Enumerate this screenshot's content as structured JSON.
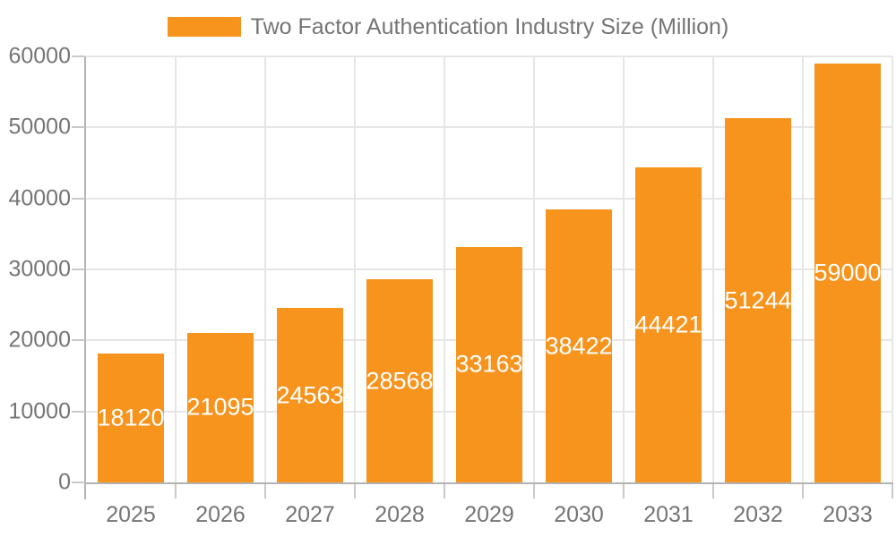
{
  "colors": {
    "bar": "#F7941E",
    "bar_label": "#FFFFFF",
    "axis_line": "#B3B3B3",
    "tick": "#C9C9C9",
    "gridline": "#E6E6E6",
    "axis_text": "#757575"
  },
  "legend": {
    "label": "Two Factor Authentication Industry Size (Million)"
  },
  "chart_data": {
    "type": "bar",
    "title": "Two Factor Authentication Industry Size (Million)",
    "categories": [
      "2025",
      "2026",
      "2027",
      "2028",
      "2029",
      "2030",
      "2031",
      "2032",
      "2033"
    ],
    "values": [
      18120,
      21095,
      24563,
      28568,
      33163,
      38422,
      44421,
      51244,
      59000
    ],
    "series": [
      {
        "name": "Two Factor Authentication Industry Size (Million)",
        "values": [
          18120,
          21095,
          24563,
          28568,
          33163,
          38422,
          44421,
          51244,
          59000
        ]
      }
    ],
    "xlabel": "",
    "ylabel": "",
    "ylim": [
      0,
      60000
    ],
    "yticks": [
      0,
      10000,
      20000,
      30000,
      40000,
      50000,
      60000
    ],
    "grid": true,
    "legend_position": "top",
    "data_labels": "inside-center"
  }
}
